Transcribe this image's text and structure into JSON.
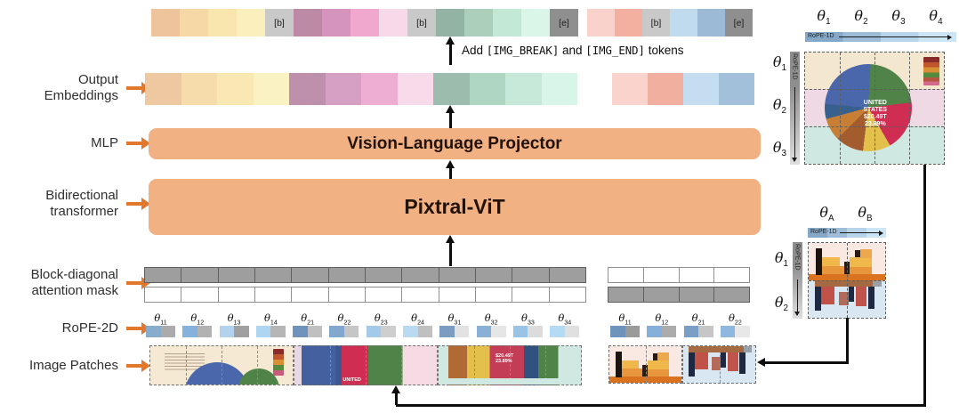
{
  "left_labels": {
    "output_embeddings": {
      "line1": "Output",
      "line2": "Embeddings"
    },
    "mlp": {
      "line1": "MLP"
    },
    "bidirectional": {
      "line1": "Bidirectional",
      "line2": "transformer"
    },
    "attention_mask": {
      "line1": "Block-diagonal",
      "line2": "attention mask"
    },
    "rope2d": {
      "line1": "RoPE-2D"
    },
    "image_patches": {
      "line1": "Image Patches"
    }
  },
  "boxes": {
    "projector": "Vision-Language Projector",
    "vit": "Pixtral-ViT"
  },
  "annotation": {
    "prefix": "Add",
    "token_break": "[IMG_BREAK]",
    "conj": "and",
    "token_end": "[IMG_END]",
    "suffix": "tokens"
  },
  "top_strip": {
    "image1": [
      {
        "color": "#eec49c"
      },
      {
        "color": "#f6d8a7"
      },
      {
        "color": "#f9e5ae"
      },
      {
        "color": "#fbefbe"
      },
      {
        "color": "#c9c9c9",
        "token": "[b]"
      },
      {
        "color": "#bd8aa6"
      },
      {
        "color": "#d494bd"
      },
      {
        "color": "#f0a8ce"
      },
      {
        "color": "#f8d9e9"
      },
      {
        "color": "#c9c9c9",
        "token": "[b]"
      },
      {
        "color": "#93b3a4"
      },
      {
        "color": "#accfbc"
      },
      {
        "color": "#c4e8d6"
      },
      {
        "color": "#d9f6e8"
      },
      {
        "color": "#8f8f8f",
        "token": "[e]"
      }
    ],
    "image2": [
      {
        "color": "#f8d2cb"
      },
      {
        "color": "#f3af9f"
      },
      {
        "color": "#c9c9c9",
        "token": "[b]"
      },
      {
        "color": "#c0daee"
      },
      {
        "color": "#9cbad6"
      },
      {
        "color": "#8f8f8f",
        "token": "[e]"
      }
    ]
  },
  "output_embeddings": {
    "image1": [
      "#edc8a0",
      "#f6dcab",
      "#f9e8b4",
      "#fbf2c4",
      "#bf90ab",
      "#d69fc4",
      "#eeadd3",
      "#f7dbeb",
      "#9cbcad",
      "#afd5c3",
      "#c6e9da",
      "#d8f5e9"
    ],
    "image2": [
      "#f9d3cc",
      "#f1af9f",
      "#c4ddf1",
      "#a2c0da"
    ]
  },
  "attention_mask": {
    "image1": {
      "cols": 12,
      "rows": [
        "filled",
        "empty"
      ]
    },
    "image2": {
      "cols": 4,
      "rows": [
        "empty",
        "filled"
      ]
    }
  },
  "rope2d": {
    "image1": [
      {
        "sub": "11",
        "blue": "#88accc",
        "gray": "#ababab"
      },
      {
        "sub": "12",
        "blue": "#84b2dc",
        "gray": "#b2b2b2"
      },
      {
        "sub": "13",
        "blue": "#b2d2ee",
        "gray": "#a0a0a0"
      },
      {
        "sub": "14",
        "blue": "#aed6f2",
        "gray": "#b6b6b6"
      },
      {
        "sub": "21",
        "blue": "#7093bc",
        "gray": "#c0c0c0"
      },
      {
        "sub": "22",
        "blue": "#82a8d0",
        "gray": "#c6c6c6"
      },
      {
        "sub": "23",
        "blue": "#a4caea",
        "gray": "#cecece"
      },
      {
        "sub": "24",
        "blue": "#badaf2",
        "gray": "#c0c0c0"
      },
      {
        "sub": "31",
        "blue": "#7c9cc2",
        "gray": "#e2e2e2"
      },
      {
        "sub": "32",
        "blue": "#8ab0d6",
        "gray": "#e6e6e6"
      },
      {
        "sub": "33",
        "blue": "#9ac4e6",
        "gray": "#dcdcdc"
      },
      {
        "sub": "34",
        "blue": "#b4daf4",
        "gray": "#e0e0e0"
      }
    ],
    "image2": [
      {
        "sub": "11",
        "blue": "#6e94bc",
        "gray": "#9a9a9a"
      },
      {
        "sub": "12",
        "blue": "#86b0da",
        "gray": "#acacac"
      },
      {
        "sub": "21",
        "blue": "#7a9ec6",
        "gray": "#c6c6c6"
      },
      {
        "sub": "22",
        "blue": "#8eb8de",
        "gray": "#e8e8e8"
      }
    ]
  },
  "right_top_diagram": {
    "h_thetas": [
      "1",
      "2",
      "3",
      "4"
    ],
    "v_thetas": [
      "1",
      "2",
      "3"
    ],
    "h_bar_label": "RoPE-1D",
    "v_bar_label": "RoPE-1D",
    "pie_lines": [
      "UNITED",
      "STATES",
      "$20.49T",
      "23.89%"
    ]
  },
  "right_bottom_diagram": {
    "h_thetas": [
      "A",
      "B"
    ],
    "v_thetas": [
      "1",
      "2"
    ],
    "h_bar_label": "RoPE-1D",
    "v_bar_label": "RoPE-1D"
  },
  "patch_annotations": {
    "united": "UNITED",
    "amount": "$20.49T",
    "percent": "23.89%"
  },
  "colors": {
    "accent_arrow": "#e2772e",
    "block_orange": "#f1b183",
    "mask_gray": "#9e9e9e"
  }
}
